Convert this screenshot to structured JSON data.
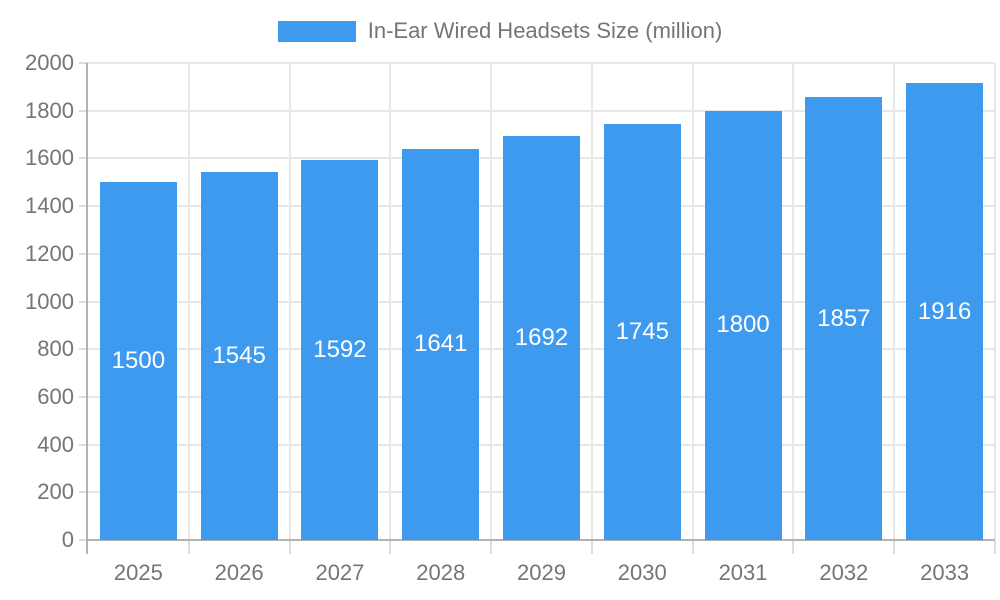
{
  "chart_data": {
    "type": "bar",
    "title": "In-Ear Wired Headsets Size (million)",
    "categories": [
      "2025",
      "2026",
      "2027",
      "2028",
      "2029",
      "2030",
      "2031",
      "2032",
      "2033"
    ],
    "values": [
      1500,
      1545,
      1592,
      1641,
      1692,
      1745,
      1800,
      1857,
      1916
    ],
    "xlabel": "",
    "ylabel": "",
    "ylim": [
      0,
      2000
    ],
    "yticks": [
      0,
      200,
      400,
      600,
      800,
      1000,
      1200,
      1400,
      1600,
      1800,
      2000
    ],
    "grid": true,
    "legend_position": "top-center",
    "bar_labels_inside": true,
    "colors": {
      "bar": "#3d9aee",
      "bar_label": "#ffffff",
      "axis_line": "#b2b2b2",
      "grid_line": "#e7e7e7",
      "tick_line": "#dcdcdc",
      "axis_label_text": "#757575",
      "legend_text": "#757575",
      "background": "#ffffff"
    }
  }
}
